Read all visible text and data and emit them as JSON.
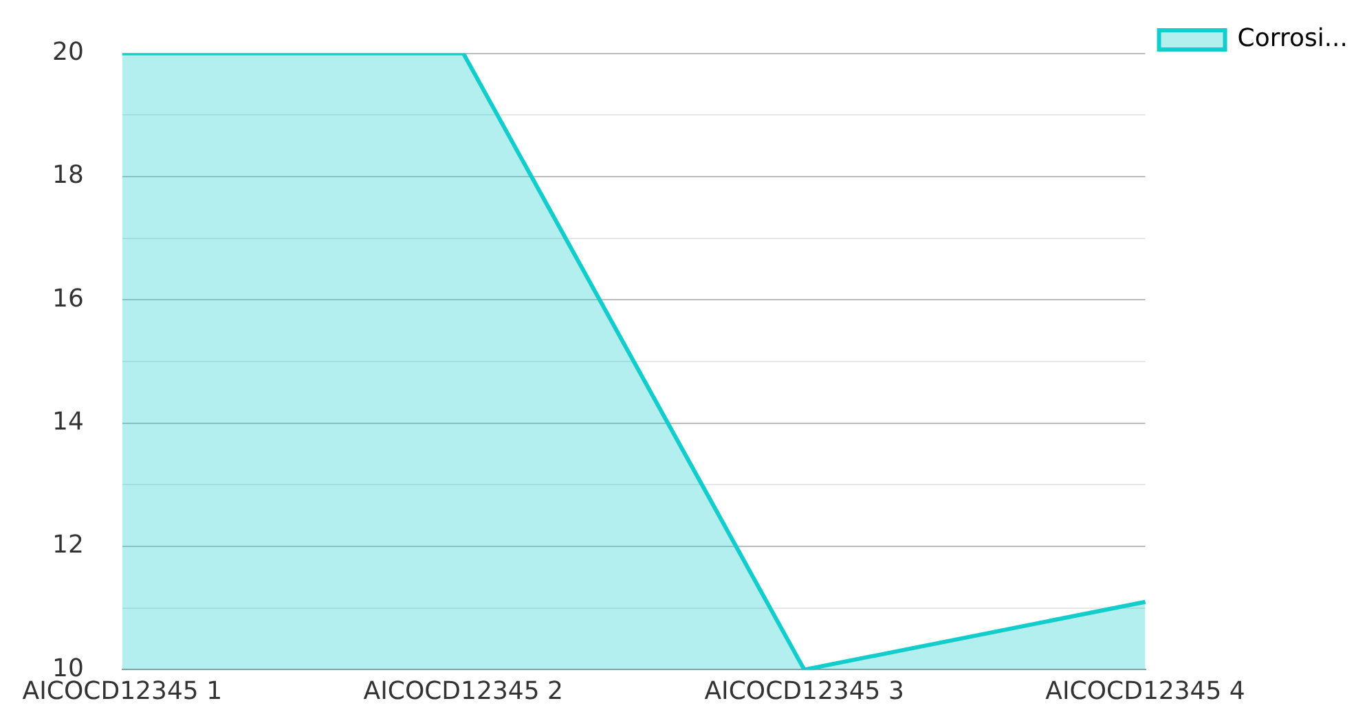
{
  "chart_data": {
    "type": "area",
    "categories": [
      "AICOCD12345 1",
      "AICOCD12345 2",
      "AICOCD12345 3",
      "AICOCD12345 4"
    ],
    "series": [
      {
        "name": "Corrosi...",
        "color": "#13cccc",
        "values": [
          20,
          20,
          10,
          11.1
        ]
      }
    ],
    "ylim": [
      10,
      20
    ],
    "yticks": [
      10,
      {
        "value": 11,
        "label": null
      },
      12,
      {
        "value": 13,
        "label": null
      },
      14,
      {
        "value": 15,
        "label": null
      },
      16,
      {
        "value": 17,
        "label": null
      },
      18,
      {
        "value": 19,
        "label": null
      },
      20
    ],
    "grid": "y",
    "legend": "top right",
    "marker": "none",
    "line_style": "solid"
  }
}
